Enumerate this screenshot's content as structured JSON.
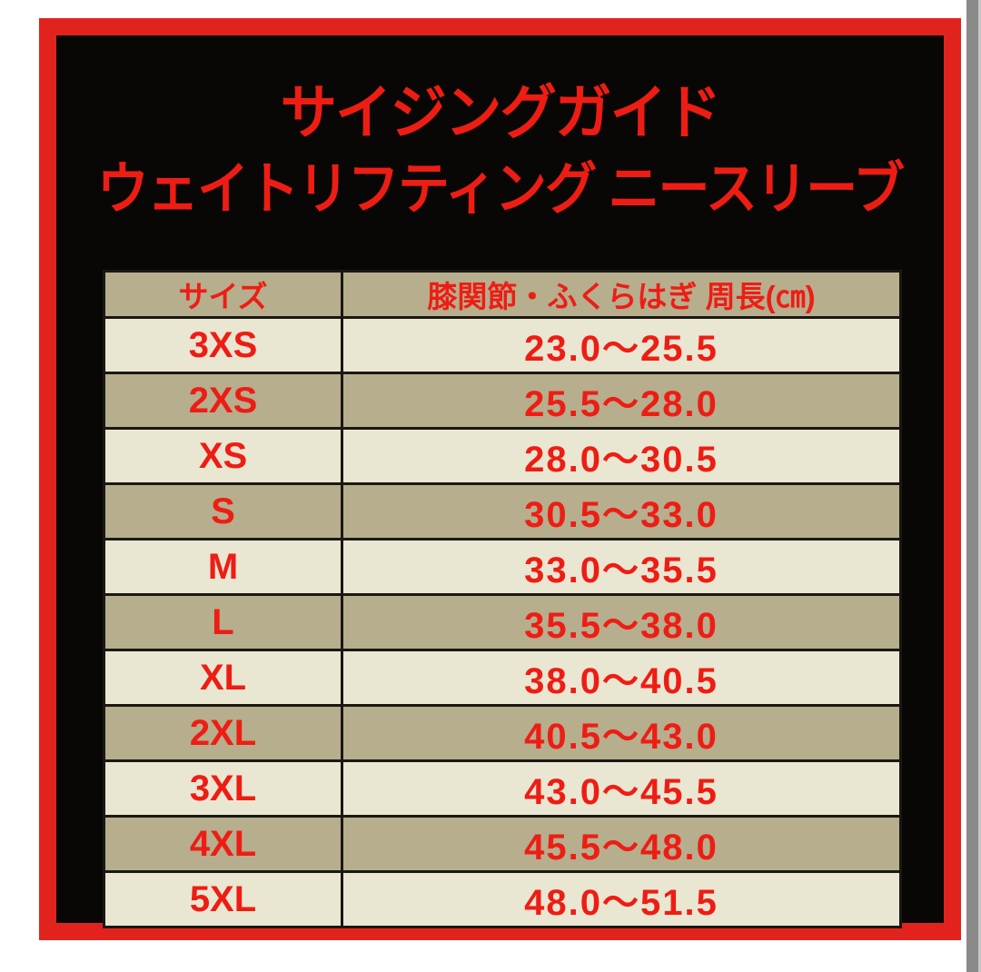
{
  "title": {
    "line1": "サイジングガイド",
    "line2": "ウェイトリフティング ニースリーブ"
  },
  "table": {
    "columns": [
      "サイズ",
      "膝関節・ふくらはぎ 周長(㎝)"
    ],
    "rows": [
      {
        "size": "3XS",
        "range": "23.0～25.5"
      },
      {
        "size": "2XS",
        "range": "25.5～28.0"
      },
      {
        "size": "XS",
        "range": "28.0～30.5"
      },
      {
        "size": "S",
        "range": "30.5～33.0"
      },
      {
        "size": "M",
        "range": "33.0～35.5"
      },
      {
        "size": "L",
        "range": "35.5～38.0"
      },
      {
        "size": "XL",
        "range": "38.0～40.5"
      },
      {
        "size": "2XL",
        "range": "40.5～43.0"
      },
      {
        "size": "3XL",
        "range": "43.0～45.5"
      },
      {
        "size": "4XL",
        "range": "45.5～48.0"
      },
      {
        "size": "5XL",
        "range": "48.0～51.5"
      }
    ]
  },
  "colors": {
    "frame_red": "#e2231d",
    "text_red": "#ee1d14",
    "row_light": "#e9e6d2",
    "row_dark": "#b6ae8d",
    "header_bg": "#b6ae8d",
    "table_border": "#1a1812",
    "panel_black": "#080706",
    "page_white": "#ffffff",
    "edge_gray": "#8a8a8a"
  }
}
